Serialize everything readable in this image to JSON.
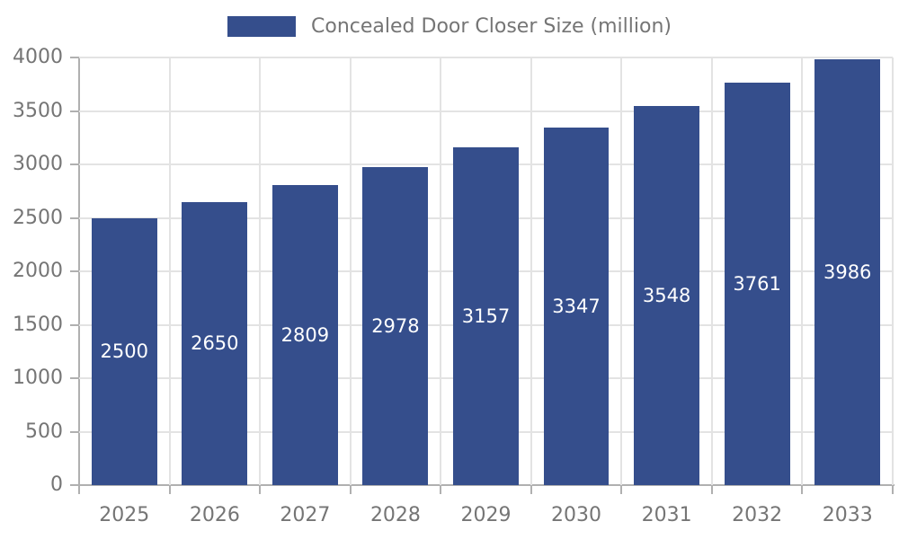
{
  "chart_data": {
    "type": "bar",
    "title": "Concealed Door Closer Size (million)",
    "categories": [
      "2025",
      "2026",
      "2027",
      "2028",
      "2029",
      "2030",
      "2031",
      "2032",
      "2033"
    ],
    "series": [
      {
        "name": "Concealed Door Closer Size (million)",
        "values": [
          2500,
          2650,
          2809,
          2978,
          3157,
          3347,
          3548,
          3761,
          3986
        ]
      }
    ],
    "bar_value_labels": [
      "2500",
      "2650",
      "2809",
      "2978",
      "3157",
      "3347",
      "3548",
      "3761",
      "3986"
    ],
    "xlabel": "",
    "ylabel": "",
    "ylim": [
      0,
      4000
    ],
    "ytick_step": 500,
    "yticks": [
      "0",
      "500",
      "1000",
      "1500",
      "2000",
      "2500",
      "3000",
      "3500",
      "4000"
    ],
    "grid": true,
    "legend_position": "top",
    "colors": {
      "bar": "#354E8C",
      "bar_value_label": "#ffffff",
      "tick_label": "#757575",
      "legend_label": "#757575",
      "gridline": "#e3e3e3",
      "axis_line": "#b0b0b0",
      "background": "#ffffff"
    }
  }
}
